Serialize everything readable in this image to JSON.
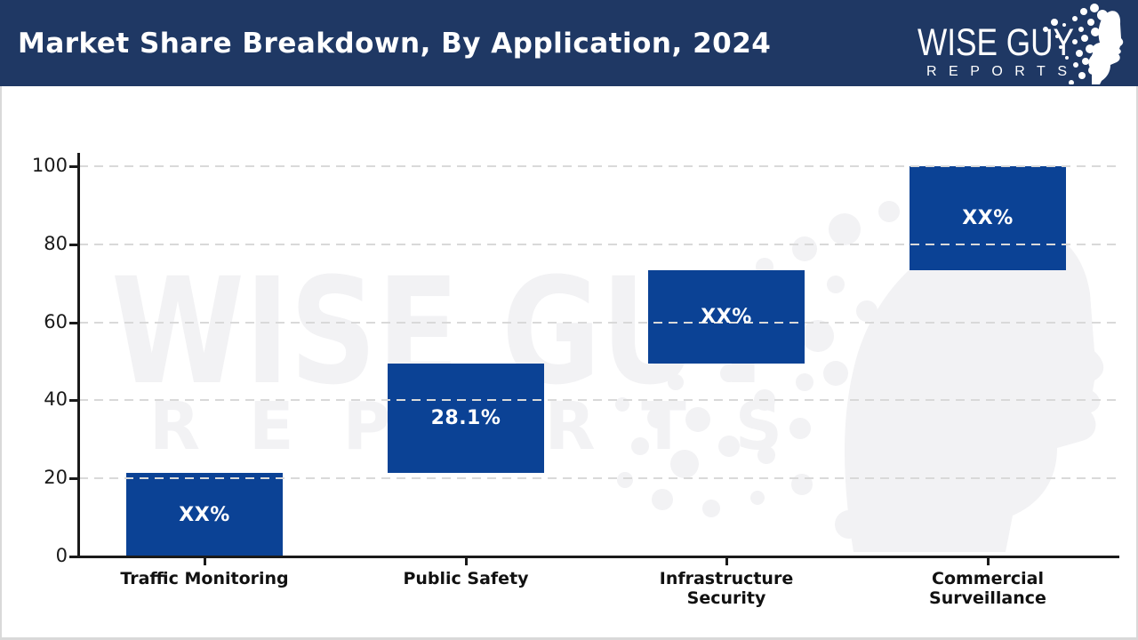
{
  "header": {
    "title": "Market Share Breakdown, By Application, 2024"
  },
  "logo": {
    "line1": "WISE GUY",
    "line2": "REPORTS",
    "head_icon": "dotted-head-profile-icon"
  },
  "watermark": {
    "line1": "WISE GUY",
    "line2": "REPORTS",
    "head_icon": "dotted-head-profile-watermark"
  },
  "chart_data": {
    "type": "bar",
    "subtype": "floating-waterfall",
    "title": "Market Share Breakdown, By Application, 2024",
    "categories": [
      "Traffic Monitoring",
      "Public Safety",
      "Infrastructure Security",
      "Commercial Surveillance"
    ],
    "bars": [
      {
        "category_lines": [
          "Traffic Monitoring"
        ],
        "start": 0,
        "end": 21.3,
        "label": "XX%"
      },
      {
        "category_lines": [
          "Public Safety"
        ],
        "start": 21.3,
        "end": 49.4,
        "label": "28.1%"
      },
      {
        "category_lines": [
          "Infrastructure",
          "Security"
        ],
        "start": 49.4,
        "end": 73.3,
        "label": "XX%"
      },
      {
        "category_lines": [
          "Commercial",
          "Surveillance"
        ],
        "start": 73.3,
        "end": 100,
        "label": "XX%"
      }
    ],
    "xlabel": "",
    "ylabel": "",
    "ylim": [
      0,
      100
    ],
    "yticks": [
      0,
      20,
      40,
      60,
      80,
      100
    ],
    "grid": "horizontal-dashed-drawn-above-bars",
    "legend": "none",
    "bar_color": "#0b4295",
    "bar_label_color": "#ffffff"
  },
  "colors": {
    "header_bg": "#1f3864",
    "bar": "#0b4295",
    "gridline": "#d9d9d9",
    "axis": "#1a1a1a",
    "watermark": "#f2f2f4",
    "panel_border": "#d9d9d9"
  }
}
